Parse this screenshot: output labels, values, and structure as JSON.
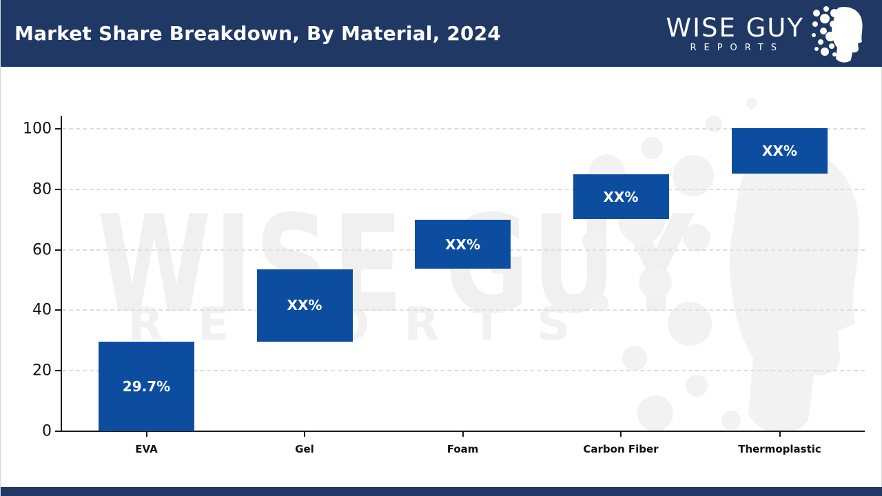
{
  "header": {
    "title": "Market Share Breakdown, By Material, 2024",
    "bg_color": "#1F3864",
    "logo": {
      "line1": "WISE GUY",
      "line2": "REPORTS"
    }
  },
  "watermark": {
    "line1": "WISE GUY",
    "line2": "REPORTS"
  },
  "footer": {
    "bg_color": "#1F3864"
  },
  "chart_data": {
    "type": "bar",
    "subtype": "waterfall",
    "title": "Market Share Breakdown, By Material, 2024",
    "xlabel": "",
    "ylabel": "",
    "ylim": [
      0,
      100
    ],
    "yticks": [
      0,
      20,
      40,
      60,
      80,
      100
    ],
    "grid": "horizontal-dashed",
    "legend": "none",
    "bar_color": "#0D4DA0",
    "label_color": "#FFFFFF",
    "categories": [
      "EVA",
      "Gel",
      "Foam",
      "Carbon Fiber",
      "Thermoplastic"
    ],
    "segments": [
      {
        "name": "EVA",
        "start": 0,
        "end": 29.7,
        "label": "29.7%"
      },
      {
        "name": "Gel",
        "start": 29.7,
        "end": 53.5,
        "label": "XX%"
      },
      {
        "name": "Foam",
        "start": 53.7,
        "end": 69.9,
        "label": "XX%"
      },
      {
        "name": "Carbon Fiber",
        "start": 70.1,
        "end": 85.0,
        "label": "XX%"
      },
      {
        "name": "Thermoplastic",
        "start": 85.1,
        "end": 100.3,
        "label": "XX%"
      }
    ]
  }
}
